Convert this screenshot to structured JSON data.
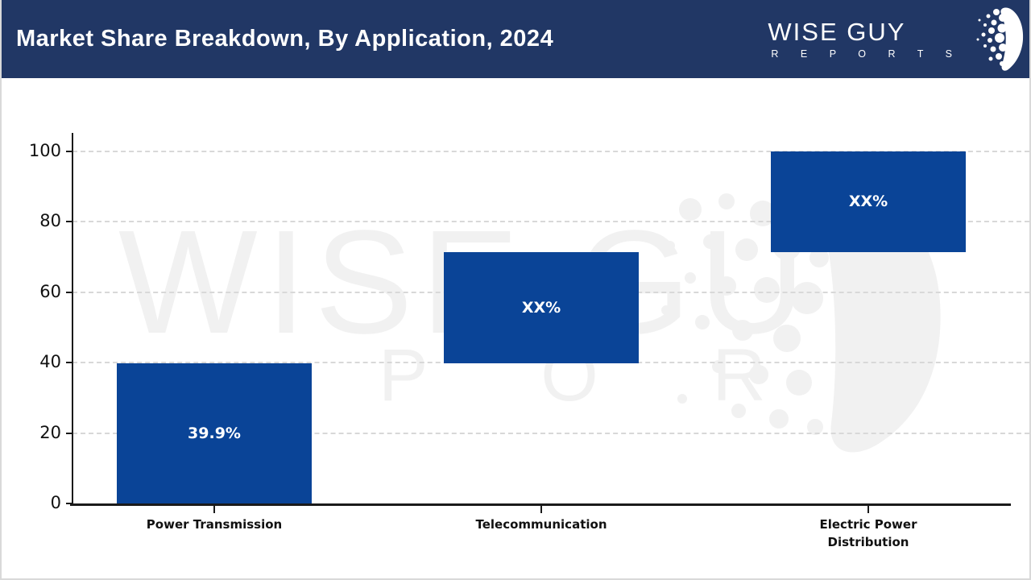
{
  "header": {
    "title": "Market Share Breakdown, By Application, 2024",
    "logo": {
      "wordmark": "WISE GUY",
      "subtitle": "R E P O R T S",
      "head_icon": "dotted-head-profile-icon"
    }
  },
  "watermark": {
    "line1": "WISE GUY",
    "line2": "P O R T S",
    "head_icon": "dotted-head-profile-watermark"
  },
  "colors": {
    "header_bg": "#213765",
    "bar": "#0a4497",
    "grid": "#d8d8d8",
    "axis": "#1a1a1a",
    "watermark": "#f1f1f1",
    "bar_label": "#ffffff"
  },
  "chart_data": {
    "type": "bar",
    "subtype": "floating-cumulative-segments",
    "title": "Market Share Breakdown, By Application, 2024",
    "categories": [
      "Power Transmission",
      "Telecommunication",
      "Electric Power Distribution"
    ],
    "segments": [
      {
        "category": "Power Transmission",
        "start": 0,
        "end": 39.9,
        "label": "39.9%"
      },
      {
        "category": "Telecommunication",
        "start": 39.9,
        "end": 71.5,
        "label": "XX%"
      },
      {
        "category": "Electric Power Distribution",
        "start": 71.5,
        "end": 100,
        "label": "XX%"
      }
    ],
    "ylim": [
      0,
      100
    ],
    "yticks": [
      0,
      20,
      40,
      60,
      80,
      100
    ],
    "grid": "dashed-horizontal",
    "legend": null,
    "bar_color": "#0a4497",
    "xlabel": "",
    "ylabel": ""
  }
}
